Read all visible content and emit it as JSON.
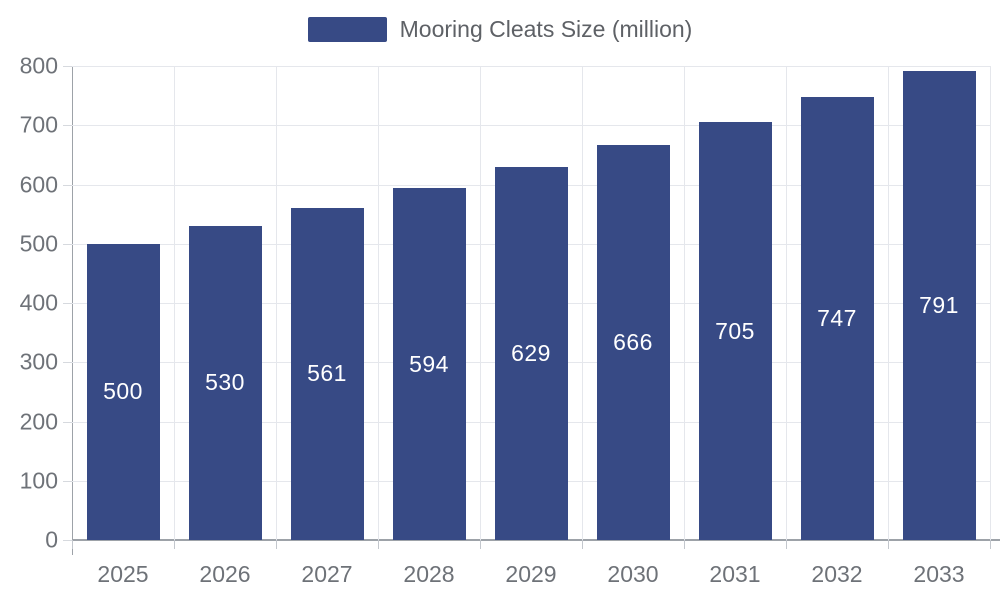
{
  "chart_data": {
    "type": "bar",
    "title": "Mooring Cleats Size (million)",
    "categories": [
      "2025",
      "2026",
      "2027",
      "2028",
      "2029",
      "2030",
      "2031",
      "2032",
      "2033"
    ],
    "series": [
      {
        "name": "Mooring Cleats Size (million)",
        "values": [
          500,
          530,
          561,
          594,
          629,
          666,
          705,
          747,
          791
        ]
      }
    ],
    "xlabel": "",
    "ylabel": "",
    "ylim": [
      0,
      800
    ],
    "ytick_step": 100,
    "grid": true,
    "legend_position": "top-center",
    "value_labels": "centered-inside-bars",
    "colors": {
      "bar": "#374a85",
      "value_label": "#ffffff",
      "axis_label": "#6e7278",
      "legend_label": "#5e6166",
      "axis_line": "#9da2a8",
      "grid_line": "#e5e7ec",
      "tick": "#c3c7cd"
    }
  }
}
